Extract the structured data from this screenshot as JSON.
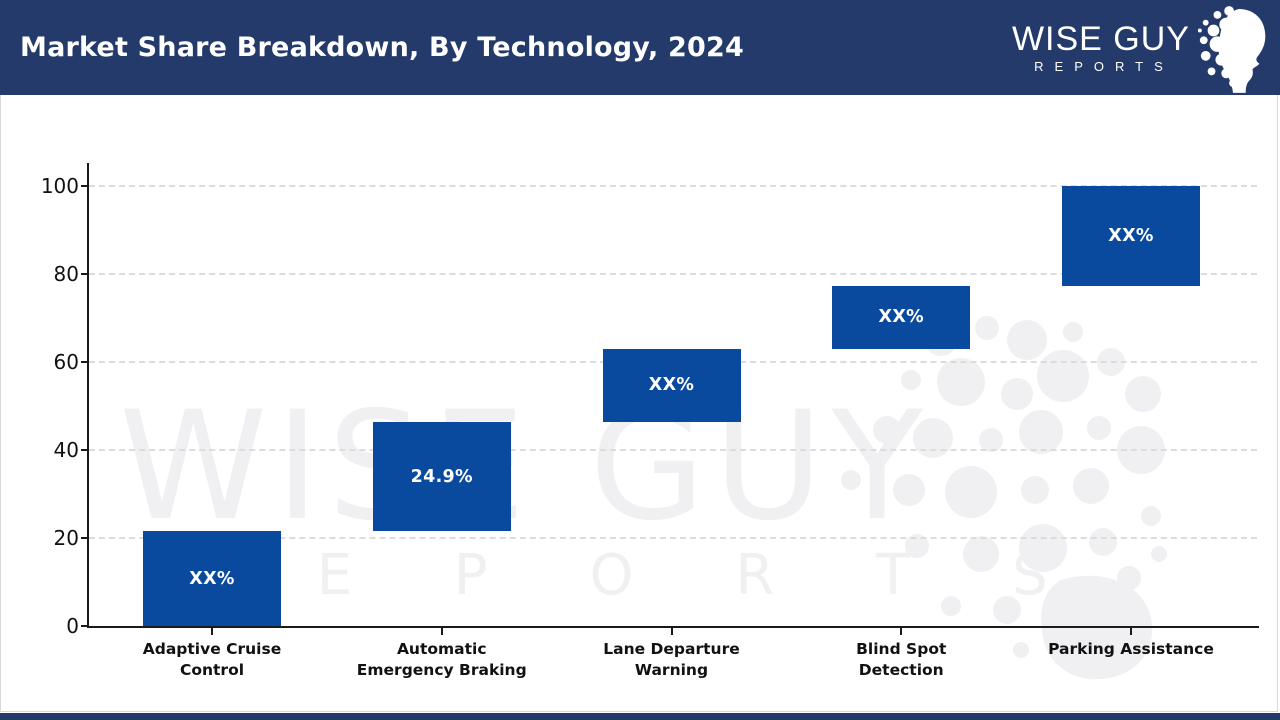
{
  "header": {
    "title": "Market Share Breakdown, By Technology, 2024",
    "logo": {
      "line1": "WISE GUY",
      "line2": "REPORTS"
    }
  },
  "watermark": {
    "line1": "WISE GUY",
    "line2": "R E P O R T S"
  },
  "colors": {
    "header_bg": "#233a6b",
    "bar_blue": "#0a4a9e",
    "grid_gray": "#dcdcdc",
    "watermark_gray": "#f0f0f2",
    "bar_label_white": "#ffffff"
  },
  "chart_data": {
    "type": "bar",
    "subtype": "waterfall",
    "title": "Market Share Breakdown, By Technology, 2024",
    "categories": [
      [
        "Adaptive Cruise",
        "Control"
      ],
      [
        "Automatic",
        "Emergency Braking"
      ],
      [
        "Lane Departure",
        "Warning"
      ],
      [
        "Blind Spot",
        "Detection"
      ],
      [
        "Parking Assistance"
      ]
    ],
    "segments": [
      {
        "label": "XX%",
        "start": 0,
        "end": 21.5
      },
      {
        "label": "24.9%",
        "start": 21.5,
        "end": 46.4
      },
      {
        "label": "XX%",
        "start": 46.4,
        "end": 63.0
      },
      {
        "label": "XX%",
        "start": 63.0,
        "end": 77.3
      },
      {
        "label": "XX%",
        "start": 77.3,
        "end": 100.0
      }
    ],
    "values_shown": [
      "XX%",
      "24.9%",
      "XX%",
      "XX%",
      "XX%"
    ],
    "yticks": [
      0,
      20,
      40,
      60,
      80,
      100
    ],
    "ylim": [
      0,
      105
    ],
    "xlabel": "",
    "ylabel": "",
    "grid": "horizontal-dashed",
    "legend": "none"
  }
}
